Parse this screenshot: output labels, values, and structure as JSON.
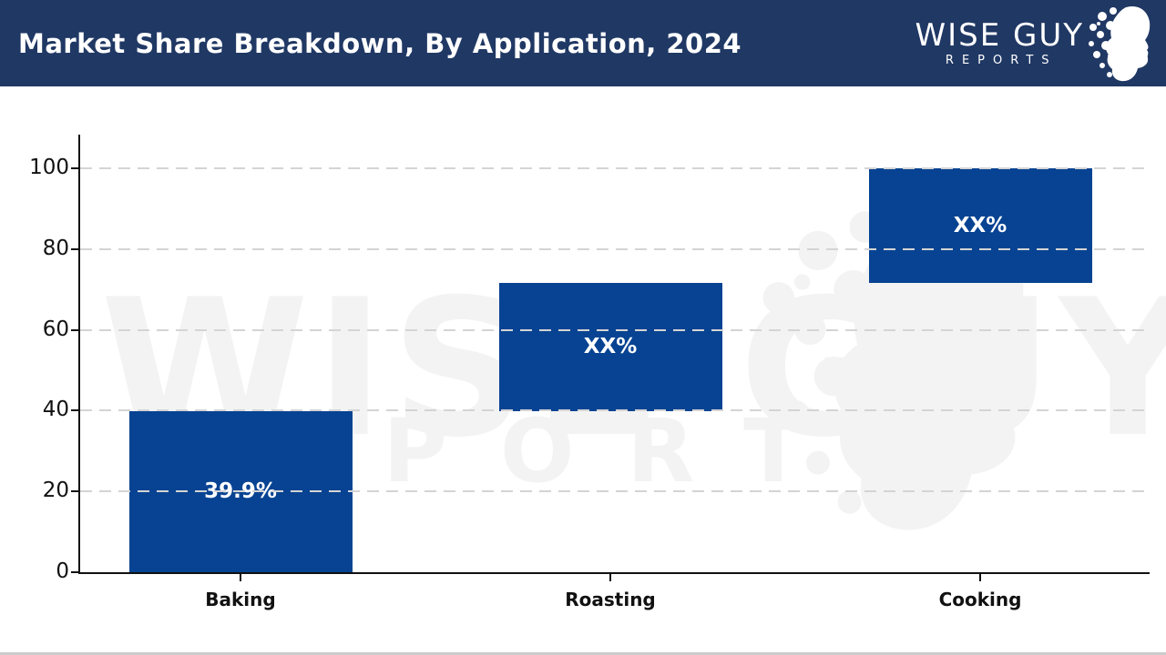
{
  "header": {
    "title": "Market Share Breakdown, By Application, 2024",
    "logo": {
      "line1": "WISE GUY",
      "line2": "REPORTS"
    }
  },
  "watermark": {
    "line1": "WISE GUY",
    "line2": "REPORTS"
  },
  "chart_data": {
    "type": "bar",
    "subtype": "waterfall",
    "title": "Market Share Breakdown, By Application, 2024",
    "categories": [
      "Baking",
      "Roasting",
      "Cooking"
    ],
    "series": [
      {
        "name": "Market Share",
        "segments": [
          {
            "category": "Baking",
            "start": 0,
            "end": 39.9,
            "label": "39.9%"
          },
          {
            "category": "Roasting",
            "start": 39.9,
            "end": 71.6,
            "label": "XX%"
          },
          {
            "category": "Cooking",
            "start": 71.6,
            "end": 100,
            "label": "XX%"
          }
        ]
      }
    ],
    "xlabel": "",
    "ylabel": "",
    "yticks": [
      0,
      20,
      40,
      60,
      80,
      100
    ],
    "ylim": [
      0,
      106.8
    ],
    "grid": "horizontal-dashed",
    "legend": "none",
    "bar_color": "#074392",
    "bar_label_color": "#ffffff"
  },
  "colors": {
    "header_bg": "#203864",
    "title_text": "#ffffff",
    "bar_blue": "#074392",
    "grid_gray": "#d4d4d4",
    "axis_black": "#111111",
    "watermark_gray": "#f3f3f3",
    "bottom_rule_gray": "#cccccc"
  }
}
